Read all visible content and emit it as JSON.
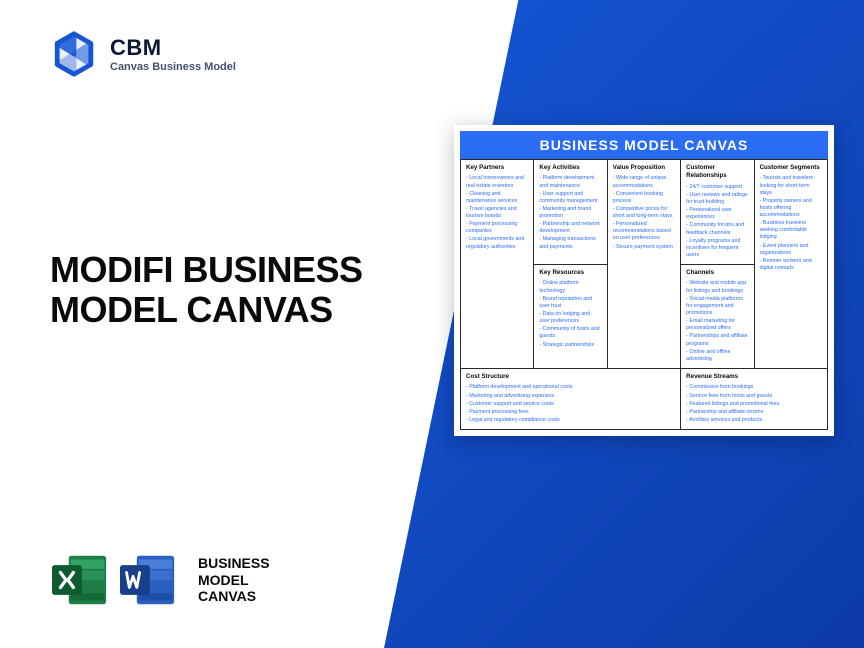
{
  "brand": {
    "short": "CBM",
    "tag": "Canvas Business Model"
  },
  "headline": "MODIFI BUSINESS MODEL CANVAS",
  "apps_label_l1": "BUSINESS",
  "apps_label_l2": "MODEL",
  "apps_label_l3": "CANVAS",
  "canvas": {
    "title": "BUSINESS MODEL CANVAS",
    "cells": {
      "key_partners": {
        "h": "Key Partners",
        "items": [
          "Local homeowners and real estate investors",
          "Cleaning and maintenance services",
          "Travel agencies and tourism boards",
          "Payment processing companies",
          "Local governments and regulatory authorities"
        ]
      },
      "key_activities": {
        "h": "Key Activities",
        "items": [
          "Platform development and maintenance",
          "User support and community management",
          "Marketing and brand promotion",
          "Partnership and network development",
          "Managing transactions and payments"
        ]
      },
      "value_prop": {
        "h": "Value Proposition",
        "items": [
          "Wide range of unique accommodations",
          "Convenient booking process",
          "Competitive prices for short and long-term stays",
          "Personalized recommendations based on user preferences",
          "Secure payment system"
        ]
      },
      "cust_rel": {
        "h": "Customer Relationships",
        "items": [
          "24/7 customer support",
          "User reviews and ratings for trust-building",
          "Personalized user experiences",
          "Community forums and feedback channels",
          "Loyalty programs and incentives for frequent users"
        ]
      },
      "cust_seg": {
        "h": "Customer Segments",
        "items": [
          "Tourists and travelers looking for short-term stays",
          "Property owners and hosts offering accommodations",
          "Business travelers seeking comfortable lodging",
          "Event planners and organizations",
          "Remote workers and digital nomads"
        ]
      },
      "key_res": {
        "h": "Key Resources",
        "items": [
          "Online platform technology",
          "Brand reputation and user trust",
          "Data on lodging and user preferences",
          "Community of hosts and guests",
          "Strategic partnerships"
        ]
      },
      "channels": {
        "h": "Channels",
        "items": [
          "Website and mobile app for listings and bookings",
          "Social media platforms for engagement and promotions",
          "Email marketing for personalized offers",
          "Partnerships and affiliate programs",
          "Online and offline advertising"
        ]
      },
      "cost": {
        "h": "Cost Structure",
        "items": [
          "Platform development and operational costs",
          "Marketing and advertising expenses",
          "Customer support and service costs",
          "Payment processing fees",
          "Legal and regulatory compliance costs"
        ]
      },
      "revenue": {
        "h": "Revenue Streams",
        "items": [
          "Commission from bookings",
          "Service fees from hosts and guests",
          "Featured listings and promotional fees",
          "Partnership and affiliate income",
          "Ancillary services and products"
        ]
      }
    }
  },
  "colors": {
    "accent": "#2a6df4",
    "excel": "#1e7e46",
    "excel_dark": "#0f5a2e",
    "word": "#2b5fc2",
    "word_dark": "#1a3f8a"
  }
}
